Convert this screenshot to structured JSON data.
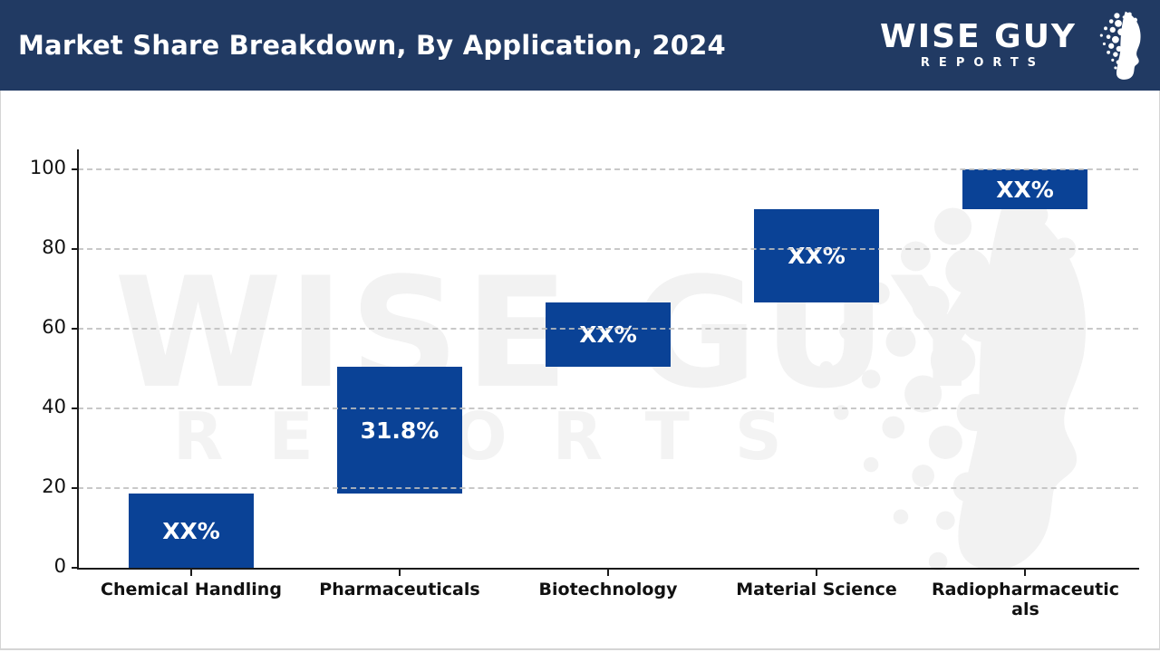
{
  "header": {
    "title": "Market Share Breakdown, By Application, 2024",
    "logo": {
      "brand_top": "WISE GUY",
      "brand_bottom": "REPORTS"
    }
  },
  "watermark": {
    "line1": "WISE GUY",
    "line2": "REPORTS"
  },
  "chart_data": {
    "type": "bar",
    "subtype": "waterfall",
    "title": "Market Share Breakdown, By Application, 2024",
    "categories": [
      "Chemical Handling",
      "Pharmaceuticals",
      "Biotechnology",
      "Material Science",
      "Radiopharmaceuticals"
    ],
    "values": [
      18.6,
      31.8,
      16.1,
      23.5,
      10.0
    ],
    "cumulative_start": [
      0,
      18.6,
      50.4,
      66.5,
      90.0
    ],
    "bar_labels": [
      "XX%",
      "31.8%",
      "XX%",
      "XX%",
      "XX%"
    ],
    "xlabel": "",
    "ylabel": "",
    "ylim": [
      0,
      100
    ],
    "yticks": [
      0,
      20,
      40,
      60,
      80,
      100
    ],
    "grid": "horizontal-dashed",
    "legend": "none"
  },
  "colors": {
    "header_bg": "#213a63",
    "bar": "#0a4296",
    "bar_label_text": "#ffffff",
    "axis": "#1a1a1a",
    "gridline": "#dedede",
    "watermark": "#f2f2f2",
    "page_border": "#d5d5d5"
  }
}
